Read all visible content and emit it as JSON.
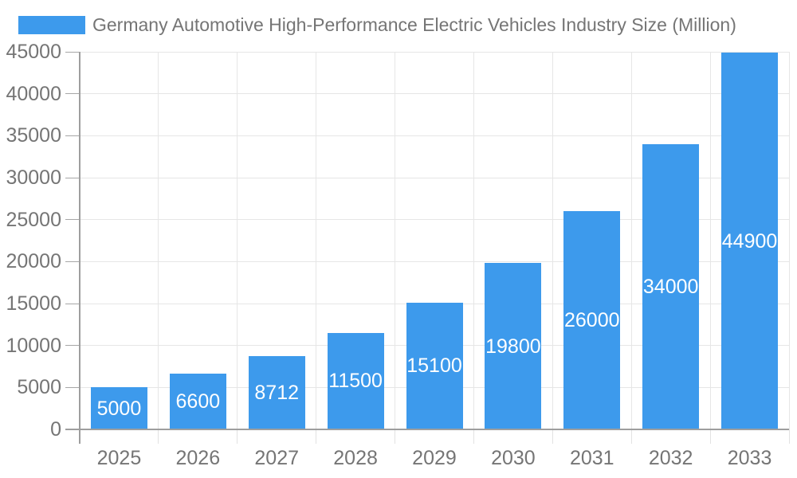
{
  "legend": {
    "position": "top-left"
  },
  "chart_data": {
    "type": "bar",
    "title": "Germany Automotive High-Performance Electric Vehicles Industry Size (Million)",
    "categories": [
      "2025",
      "2026",
      "2027",
      "2028",
      "2029",
      "2030",
      "2031",
      "2032",
      "2033"
    ],
    "values": [
      5000,
      6600,
      8712,
      11500,
      15100,
      19800,
      26000,
      34000,
      44900
    ],
    "bar_value_labels": [
      "5000",
      "6600",
      "8712",
      "11500",
      "15100",
      "19800",
      "26000",
      "34000",
      "44900"
    ],
    "xlabel": "",
    "ylabel": "",
    "ylim": [
      0,
      45000
    ],
    "ytick_step": 5000,
    "ytick_labels": [
      "0",
      "5000",
      "10000",
      "15000",
      "20000",
      "25000",
      "30000",
      "35000",
      "40000",
      "45000"
    ],
    "grid": true,
    "legend_position": "top-left",
    "colors": {
      "bar": "#3D9AEC",
      "bar_value_text": "#FFFFFF",
      "axis_text": "#757575",
      "title_text": "#757575",
      "grid_line": "#E6E6E6",
      "axis_line": "#9E9E9E",
      "y_tick": "#A6A6A6",
      "x_tick": "#E2E2E2",
      "background": "#FFFFFF"
    }
  }
}
